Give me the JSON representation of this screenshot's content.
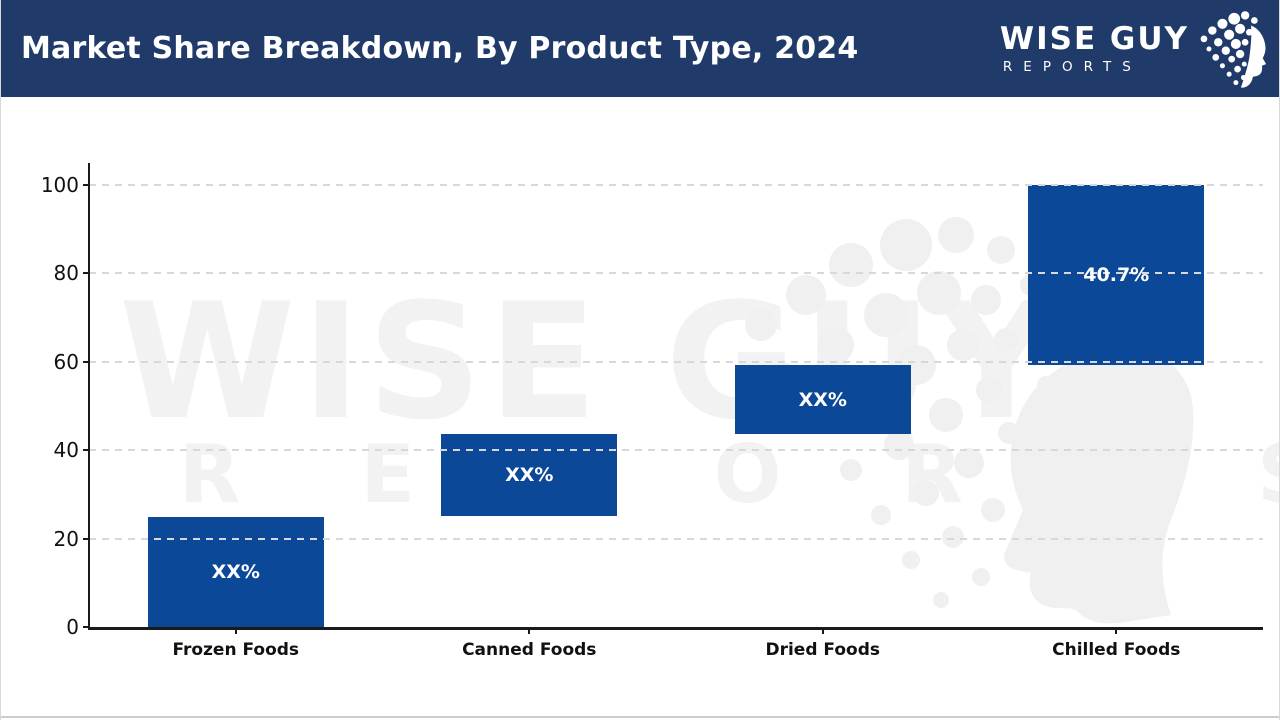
{
  "header": {
    "title": "Market Share Breakdown, By Product Type, 2024",
    "logo": {
      "line1": "WISE GUY",
      "line2": "REPORTS"
    }
  },
  "watermark": {
    "line1": "WISE GUY",
    "line2": "R E P O R T S"
  },
  "chart_data": {
    "type": "bar",
    "subtype": "waterfall",
    "title": "Market Share Breakdown, By Product Type, 2024",
    "categories": [
      "Frozen Foods",
      "Canned Foods",
      "Dried Foods",
      "Chilled Foods"
    ],
    "segments": [
      {
        "category": "Frozen Foods",
        "start": 0,
        "end": 25,
        "size": 25.0,
        "label": "XX%"
      },
      {
        "category": "Canned Foods",
        "start": 25,
        "end": 43.6,
        "size": 18.6,
        "label": "XX%"
      },
      {
        "category": "Dried Foods",
        "start": 43.6,
        "end": 59.3,
        "size": 15.7,
        "label": "XX%"
      },
      {
        "category": "Chilled Foods",
        "start": 59.3,
        "end": 100,
        "size": 40.7,
        "label": "40.7%"
      }
    ],
    "yticks": [
      0,
      20,
      40,
      60,
      80,
      100
    ],
    "ylim": [
      0,
      100
    ],
    "xlabel": "",
    "ylabel": "",
    "legend": "none",
    "grid": "horizontal-dashed",
    "gridlines_over_bars": true,
    "bar_color": "#0b4898",
    "bar_label_color": "#ffffff",
    "grid_color": "#d8d8d8",
    "axis_color": "#1a1a1a",
    "header_bg": "#203a69",
    "watermark_color": "#f2f2f2"
  }
}
